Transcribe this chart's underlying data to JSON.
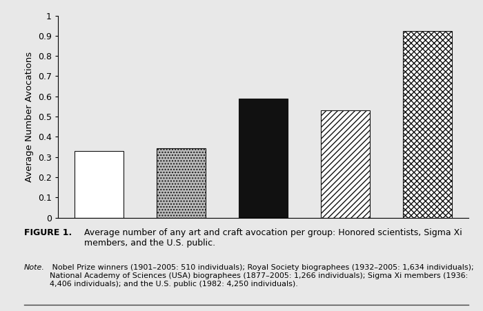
{
  "values": [
    0.33,
    0.345,
    0.59,
    0.53,
    0.925
  ],
  "ylabel": "Average Number Avocations",
  "ylim": [
    0,
    1.0
  ],
  "yticks": [
    0,
    0.1,
    0.2,
    0.3,
    0.4,
    0.5,
    0.6,
    0.7,
    0.8,
    0.9,
    1
  ],
  "ytick_labels": [
    "0",
    "0.1",
    "0.2",
    "0.3",
    "0.4",
    "0.5",
    "0.6",
    "0.7",
    "0.8",
    "0.9",
    "1"
  ],
  "background_color": "#e8e8e8",
  "plot_bg_color": "#e8e8e8",
  "bar_edge_color": "#111111",
  "bar_facecolors": [
    "#ffffff",
    "#bbbbbb",
    "#111111",
    "#ffffff",
    "#ffffff"
  ],
  "hatch_patterns": [
    "",
    "....",
    "",
    "////",
    "xxxx"
  ],
  "caption_bold": "FIGURE 1.",
  "caption_text": "Average number of any art and craft avocation per group: Honored scientists, Sigma Xi\nmembers, and the U.S. public.",
  "note_label": "Note.",
  "note_text": " Nobel Prize winners (1901–2005: 510 individuals); Royal Society biographees (1932–2005: 1,634 individuals); National Academy of Sciences (USA) biographees (1877–2005: 1,266 individuals); Sigma Xi members (1936: 4,406 individuals); and the U.S. public (1982: 4,250 individuals)."
}
